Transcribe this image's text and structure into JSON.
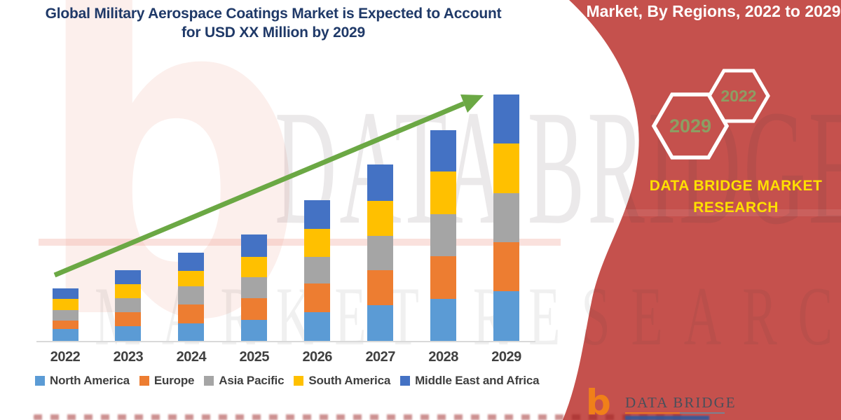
{
  "header": {
    "title_line1": "Global Military Aerospace Coatings Market is Expected to Account",
    "title_line2": "for USD XX Million by 2029"
  },
  "ribbon": {
    "title": "Market, By Regions, 2022 to 2029",
    "hexagons": [
      {
        "label": "2029"
      },
      {
        "label": "2022"
      }
    ],
    "brand_line1": "DATA BRIDGE MARKET",
    "brand_line2": "RESEARCH",
    "background_color": "#C5514D",
    "hexagon_label_color": "#8C9E63",
    "brand_text_color": "#FFE000"
  },
  "footer_logo": {
    "icon": "data-bridge-b-logo",
    "text": "DATA BRIDGE"
  },
  "watermarks": {
    "big_letter": "b",
    "line1": "DATA BRIDGE",
    "line2": "MARKET RESEARCH"
  },
  "chart_data": {
    "type": "bar",
    "stacked": true,
    "title": "Global Military Aerospace Coatings Market is Expected to Account for USD XX Million by 2029",
    "xlabel": "",
    "ylabel": "",
    "y_axis_shown": false,
    "values_note": "Y-axis values not shown (USD XX Million); series values estimated from bar heights, arbitrary units",
    "categories": [
      "2022",
      "2023",
      "2024",
      "2025",
      "2026",
      "2027",
      "2028",
      "2029"
    ],
    "series": [
      {
        "name": "North America",
        "color": "#5B9BD5",
        "values": [
          17,
          21,
          25,
          30,
          41,
          51,
          60,
          71
        ]
      },
      {
        "name": "Europe",
        "color": "#ED7D31",
        "values": [
          12,
          20,
          27,
          31,
          41,
          50,
          61,
          70
        ]
      },
      {
        "name": "Asia Pacific",
        "color": "#A5A5A5",
        "values": [
          15,
          20,
          26,
          30,
          38,
          49,
          60,
          70
        ]
      },
      {
        "name": "South America",
        "color": "#FFC000",
        "values": [
          16,
          20,
          22,
          29,
          40,
          50,
          61,
          71
        ]
      },
      {
        "name": "Middle East and Africa",
        "color": "#4472C4",
        "values": [
          15,
          20,
          26,
          32,
          41,
          52,
          59,
          70
        ]
      }
    ],
    "totals_estimated": [
      75,
      101,
      126,
      152,
      201,
      252,
      301,
      352
    ],
    "legend_position": "bottom",
    "grid": false,
    "axis_line_color": "#D9D9D9",
    "title_color": "#1F3968",
    "label_color": "#404040",
    "annotations": [
      {
        "type": "trend-arrow",
        "color": "#6BA844",
        "direction": "up-right"
      }
    ]
  }
}
